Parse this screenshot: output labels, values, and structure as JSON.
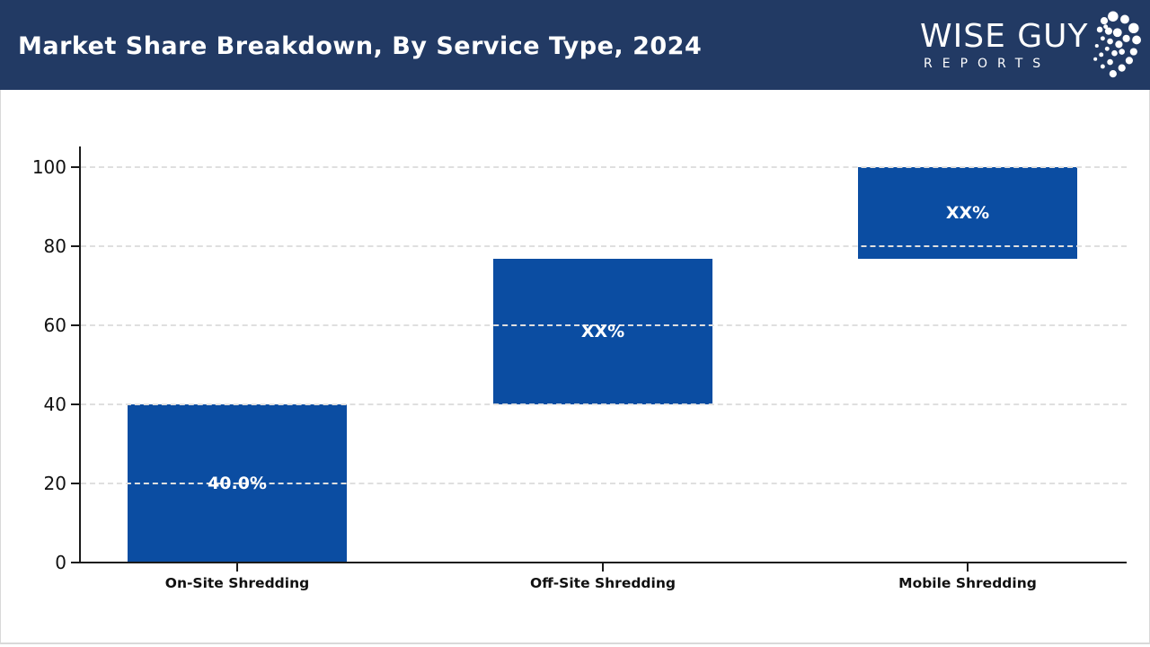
{
  "header": {
    "title": "Market Share Breakdown, By Service Type, 2024",
    "logo_line1": "WISE GUY",
    "logo_line2": "REPORTS"
  },
  "watermark": {
    "line1": "WISE GUY",
    "line2": "REPORTS"
  },
  "colors": {
    "header_bg": "#223a64",
    "bar_fill": "#0b4da2",
    "bar_label_text": "#ffffff",
    "gridline": "#dfdfdf",
    "axis": "#1a1a1a",
    "watermark": "#f2f2f3",
    "panel_border": "#d9d9d9"
  },
  "chart_data": {
    "type": "bar",
    "subtype": "floating-waterfall",
    "title": "Market Share Breakdown, By Service Type, 2024",
    "categories": [
      "On-Site Shredding",
      "Off-Site Shredding",
      "Mobile Shredding"
    ],
    "bars": [
      {
        "category": "On-Site Shredding",
        "start": 0,
        "end": 40,
        "label": "40.0%"
      },
      {
        "category": "Off-Site Shredding",
        "start": 40,
        "end": 76.8,
        "label": "XX%"
      },
      {
        "category": "Mobile Shredding",
        "start": 76.8,
        "end": 100,
        "label": "XX%"
      }
    ],
    "xlabel": "",
    "ylabel": "",
    "ylim": [
      0,
      100
    ],
    "yticks": [
      0,
      20,
      40,
      60,
      80,
      100
    ],
    "grid": "horizontal-dashed",
    "legend": "none",
    "bar_color": "#0b4da2",
    "label_color": "#ffffff"
  }
}
